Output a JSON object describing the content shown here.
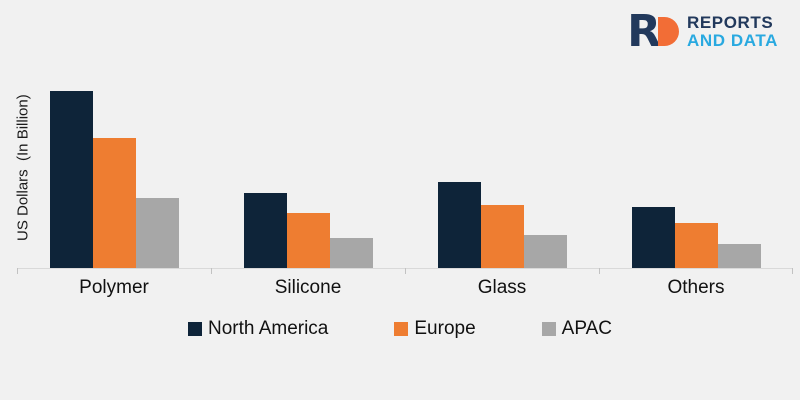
{
  "logo": {
    "monogram": "R",
    "name_line1": "REPORTS",
    "name_line2": "AND DATA",
    "colors": {
      "navy": "#22395c",
      "orange": "#f26d36",
      "light_blue": "#29a9e0"
    }
  },
  "chart_data": {
    "type": "bar",
    "title": "",
    "xlabel": "",
    "ylabel": "US Dollars  (In Billion)",
    "categories": [
      "Polymer",
      "Silicone",
      "Glass",
      "Others"
    ],
    "series": [
      {
        "name": "North America",
        "color": "#0e2439",
        "values": [
          8.85,
          3.75,
          4.3,
          3.05
        ]
      },
      {
        "name": "Europe",
        "color": "#ee7d31",
        "values": [
          6.5,
          2.75,
          3.15,
          2.25
        ]
      },
      {
        "name": "APAC",
        "color": "#a7a7a7",
        "values": [
          3.5,
          1.5,
          1.65,
          1.2
        ]
      }
    ],
    "ylim": [
      0,
      10
    ],
    "grid": false,
    "y_tick_labels_shown": false,
    "legend_position": "bottom",
    "axis_line_color": "#d9d9d9",
    "background_color": "#f1f1f1"
  }
}
